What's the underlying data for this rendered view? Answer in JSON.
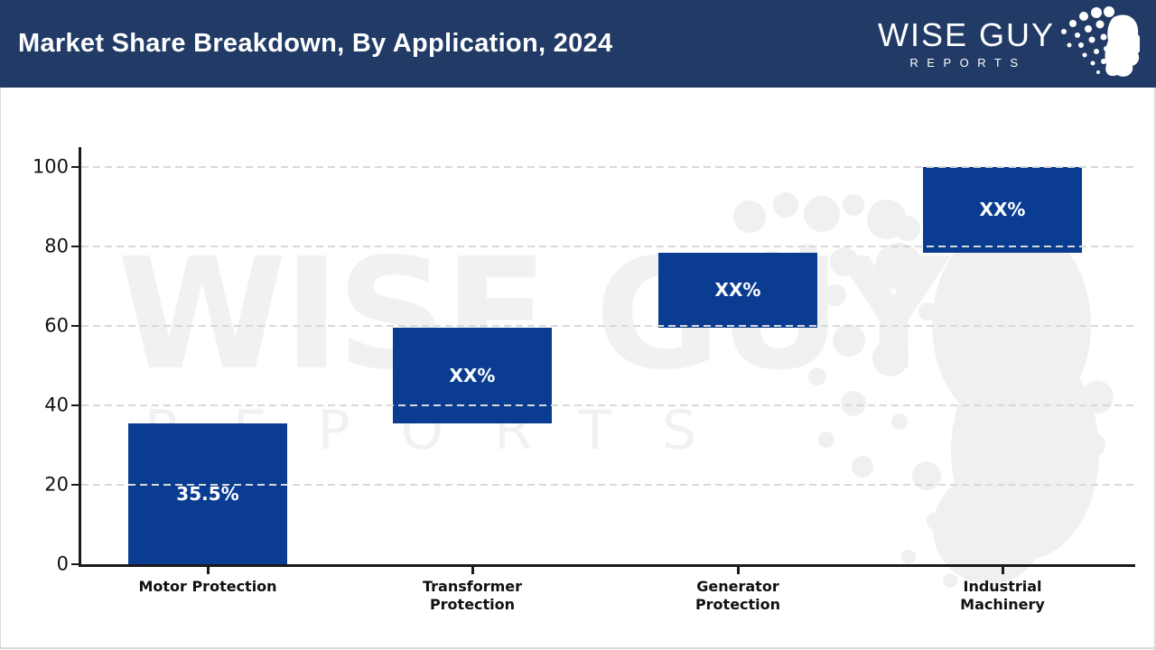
{
  "header": {
    "title": "Market Share Breakdown, By Application, 2024",
    "logo": {
      "line1": "WISE GUY",
      "line2": "REPORTS"
    }
  },
  "watermark": {
    "line1": "WISE GUY",
    "line2": "REPORTS"
  },
  "chart_data": {
    "type": "bar",
    "subtype": "waterfall",
    "title": "Market Share Breakdown, By Application, 2024",
    "categories": [
      "Motor Protection",
      "Transformer Protection",
      "Generator Protection",
      "Industrial Machinery"
    ],
    "segments": [
      {
        "category": "Motor Protection",
        "label_lines": [
          "Motor Protection"
        ],
        "start": 0,
        "end": 35.5,
        "value_label": "35.5%"
      },
      {
        "category": "Transformer Protection",
        "label_lines": [
          "Transformer",
          "Protection"
        ],
        "start": 35.5,
        "end": 59.5,
        "value_label": "XX%"
      },
      {
        "category": "Generator Protection",
        "label_lines": [
          "Generator",
          "Protection"
        ],
        "start": 59.5,
        "end": 78.5,
        "value_label": "XX%"
      },
      {
        "category": "Industrial Machinery",
        "label_lines": [
          "Industrial",
          "Machinery"
        ],
        "start": 78.5,
        "end": 100,
        "value_label": "XX%"
      }
    ],
    "y_ticks": [
      0,
      20,
      40,
      60,
      80,
      100
    ],
    "ylim": [
      0,
      105
    ],
    "xlabel": "",
    "ylabel": "",
    "grid": "horizontal-dashed, drawn above bars",
    "legend": "none"
  },
  "colors": {
    "header_bg": "#213a66",
    "bar": "#0a3d91",
    "bar_value_text": "#ffffff",
    "grid": "#d9d9d9",
    "axis": "#1a1a1a",
    "watermark": "#f1f1f1"
  }
}
